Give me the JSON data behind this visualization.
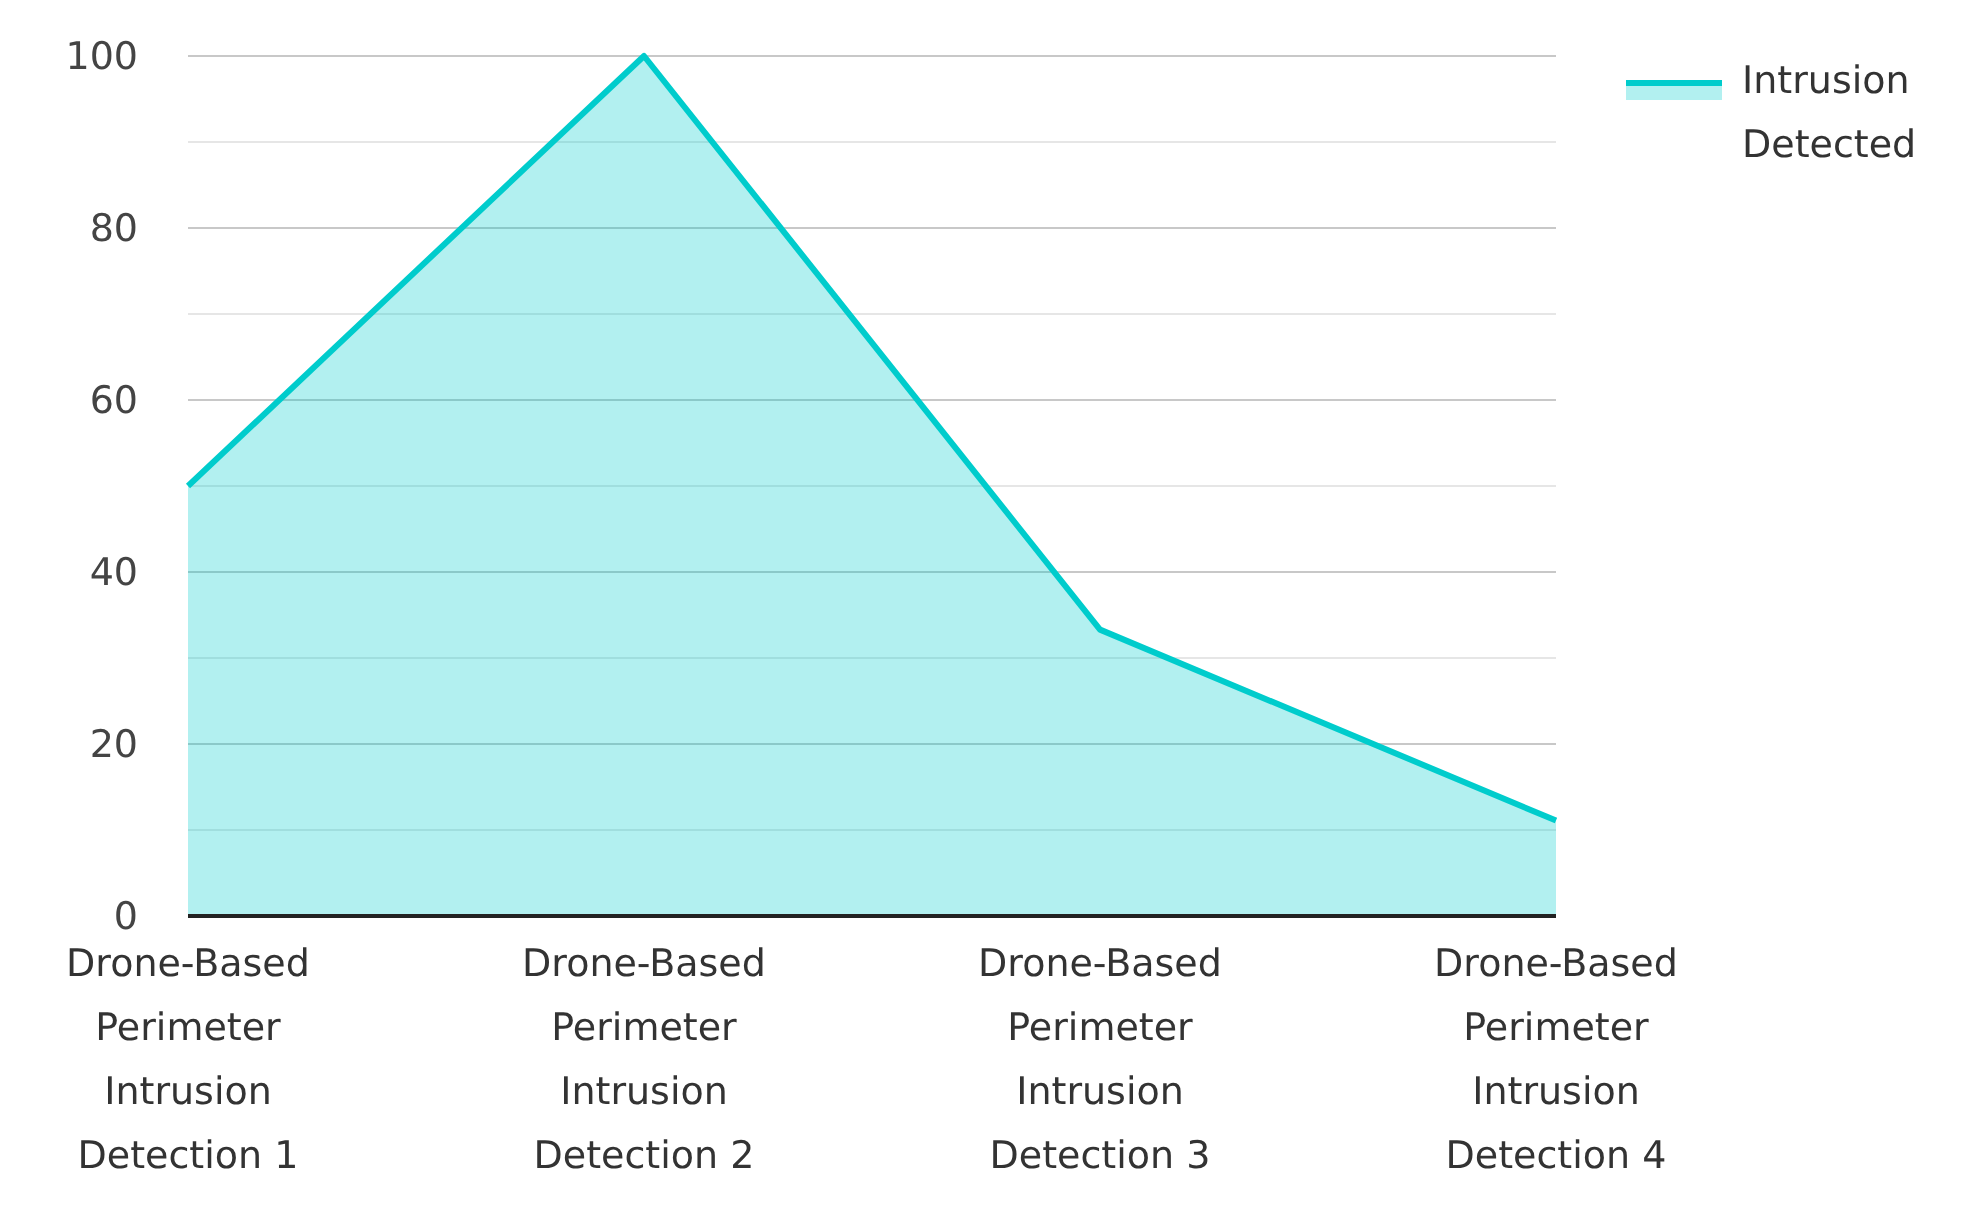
{
  "chart_data": {
    "type": "area",
    "categories": [
      "Drone-Based Perimeter Intrusion Detection 1",
      "Drone-Based Perimeter Intrusion Detection 2",
      "Drone-Based Perimeter Intrusion Detection 3",
      "Drone-Based Perimeter Intrusion Detection 4"
    ],
    "series": [
      {
        "name": "Intrusion Detected",
        "color": "#00cccc",
        "values": [
          50,
          100,
          33.3,
          11.1
        ]
      }
    ],
    "ylim": [
      0,
      100
    ],
    "yticks": [
      0,
      {
        "value": 10,
        "label": null
      },
      20,
      {
        "value": 30,
        "label": null
      },
      40,
      {
        "value": 50,
        "label": null
      },
      60,
      {
        "value": 70,
        "label": null
      },
      80,
      {
        "value": 90,
        "label": null
      },
      100
    ],
    "grid": "y",
    "legend": "top right"
  }
}
